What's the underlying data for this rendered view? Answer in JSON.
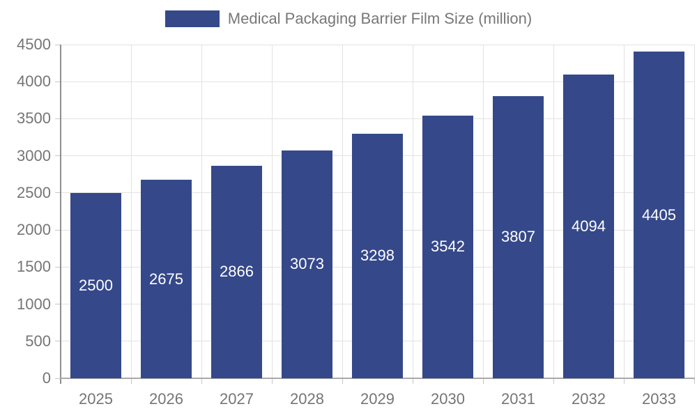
{
  "legend": {
    "label": "Medical Packaging Barrier Film Size (million)",
    "swatch_color": "#35488a"
  },
  "chart_data": {
    "type": "bar",
    "title": "Medical Packaging Barrier Film Size (million)",
    "series_name": "Medical Packaging Barrier Film Size (million)",
    "categories": [
      "2025",
      "2026",
      "2027",
      "2028",
      "2029",
      "2030",
      "2031",
      "2032",
      "2033"
    ],
    "values": [
      2500,
      2675,
      2866,
      3073,
      3298,
      3542,
      3807,
      4094,
      4405
    ],
    "xlabel": "",
    "ylabel": "",
    "ylim": [
      0,
      4500
    ],
    "ytick_interval": 500,
    "yticks": [
      0,
      500,
      1000,
      1500,
      2000,
      2500,
      3000,
      3500,
      4000,
      4500
    ],
    "grid": true,
    "legend_position": "top",
    "bar_color": "#35488a",
    "value_label_color": "#ffffff",
    "value_labels_visible": true
  },
  "colors": {
    "bar": "#35488a",
    "grid_line": "#e2e2e2",
    "y_axis_line": "#8f8f8f",
    "x_axis_line": "#a9a9a9",
    "tick": "#c6c6c6",
    "axis_text": "#757575",
    "legend_text": "#777777",
    "background": "#ffffff"
  }
}
